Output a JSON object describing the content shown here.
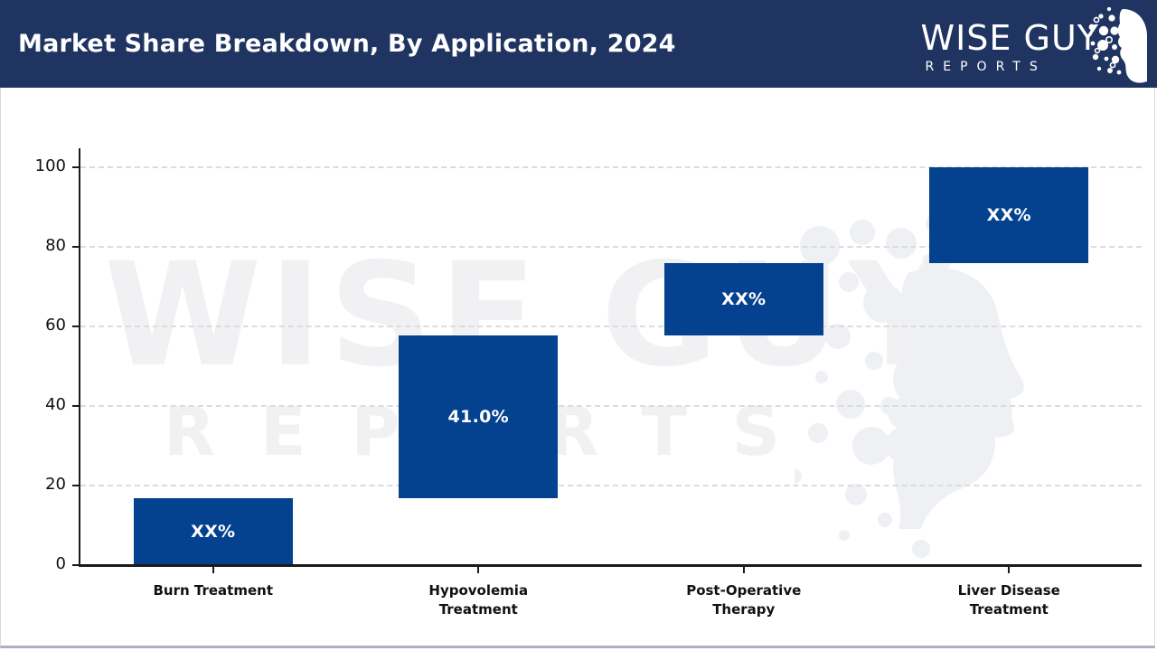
{
  "header": {
    "title": "Market Share Breakdown, By Application, 2024",
    "logo": {
      "wordmark": "WISE GUY",
      "subtext": "REPORTS"
    }
  },
  "watermark": {
    "wordmark": "WISE GUY",
    "subtext": "REPORTS"
  },
  "colors": {
    "header_bg": "#203462",
    "bar": "#04418f",
    "bar_label": "#ffffff",
    "gridline": "#dcdcdc",
    "axis": "#1a1a1a",
    "watermark": "#f1f1f4"
  },
  "chart_data": {
    "type": "bar",
    "subtype": "floating-waterfall",
    "title": "Market Share Breakdown, By Application, 2024",
    "categories": [
      "Burn Treatment",
      "Hypovolemia\nTreatment",
      "Post-Operative\nTherapy",
      "Liver Disease\nTreatment"
    ],
    "segments": [
      {
        "category": "Burn Treatment",
        "start": 0,
        "end": 16.8,
        "label": "XX%"
      },
      {
        "category": "Hypovolemia Treatment",
        "start": 16.8,
        "end": 57.8,
        "label": "41.0%",
        "value": 41.0
      },
      {
        "category": "Post-Operative Therapy",
        "start": 57.8,
        "end": 75.8,
        "label": "XX%"
      },
      {
        "category": "Liver Disease Treatment",
        "start": 75.8,
        "end": 100,
        "label": "XX%"
      }
    ],
    "ylim": [
      0,
      100
    ],
    "yticks": [
      0,
      20,
      40,
      60,
      80,
      100
    ],
    "grid": "horizontal-dashed",
    "legend": "none",
    "xlabel": "",
    "ylabel": ""
  }
}
